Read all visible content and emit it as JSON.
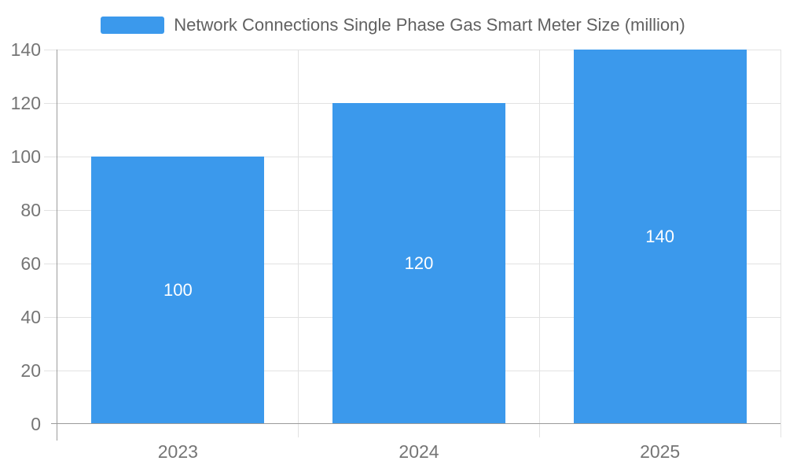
{
  "legend": {
    "position": "top",
    "swatch_color": "#3B99EC"
  },
  "chart_data": {
    "type": "bar",
    "title": "",
    "xlabel": "",
    "ylabel": "",
    "categories": [
      "2023",
      "2024",
      "2025"
    ],
    "series": [
      {
        "name": "Network Connections Single Phase Gas Smart Meter Size (million)",
        "values": [
          100,
          120,
          140
        ],
        "color": "#3B99EC"
      }
    ],
    "data_labels": [
      "100",
      "120",
      "140"
    ],
    "data_label_color": "#FFFFFF",
    "ylim": [
      0,
      140
    ],
    "yticks": [
      0,
      20,
      40,
      60,
      80,
      100,
      120,
      140
    ],
    "grid": true,
    "legend_position": "top-center"
  },
  "colors": {
    "bar": "#3B99EC",
    "gridline": "#E2E2E2",
    "axis_line": "#9B9B9B",
    "tick_label": "#757575",
    "legend_text": "#616161",
    "background": "#FFFFFF"
  }
}
